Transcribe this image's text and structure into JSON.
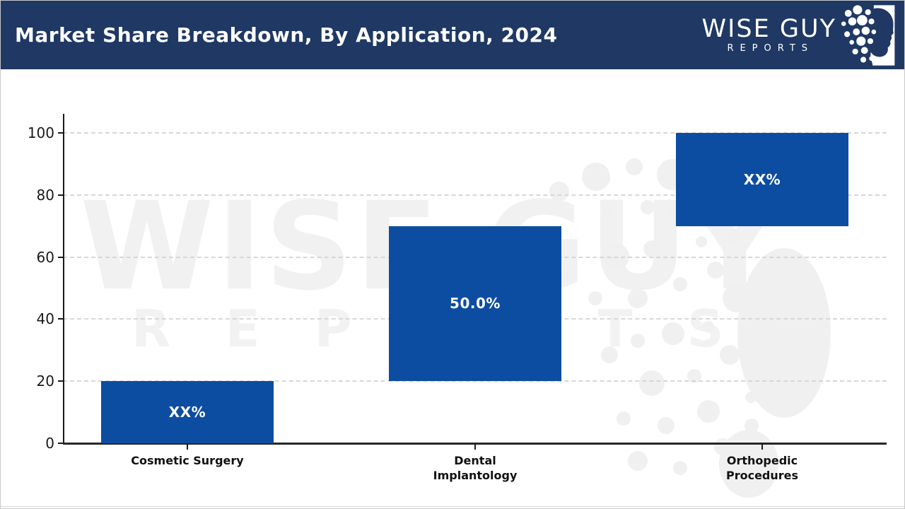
{
  "header": {
    "title": "Market Share Breakdown, By Application, 2024",
    "logo": {
      "line1": "WISE GUY",
      "line2": "REPORTS"
    },
    "bg_color": "#1f3864"
  },
  "watermark": {
    "line1": "WISE GUY",
    "line2": "R E P O R T S"
  },
  "chart_data": {
    "type": "bar",
    "subtype": "floating-segment-breakdown",
    "title": "Market Share Breakdown, By Application, 2024",
    "categories": [
      "Cosmetic Surgery",
      "Dental Implantology",
      "Orthopedic Procedures"
    ],
    "category_label_lines": [
      [
        "Cosmetic Surgery"
      ],
      [
        "Dental",
        "Implantology"
      ],
      [
        "Orthopedic",
        "Procedures"
      ]
    ],
    "series": [
      {
        "name": "Market Share",
        "ranges": [
          [
            0,
            20
          ],
          [
            20,
            70
          ],
          [
            70,
            100
          ]
        ],
        "segment_sizes": [
          20,
          50,
          30
        ]
      }
    ],
    "bar_labels": [
      "XX%",
      "50.0%",
      "XX%"
    ],
    "yticks": [
      0,
      20,
      40,
      60,
      80,
      100
    ],
    "ylim": [
      0,
      100
    ],
    "xlabel": "",
    "ylabel": "",
    "grid": "horizontal-dashed",
    "legend": "none",
    "bar_color": "#0d4da1",
    "bar_label_color": "#ffffff",
    "axis_color": "#1a1a1a"
  }
}
